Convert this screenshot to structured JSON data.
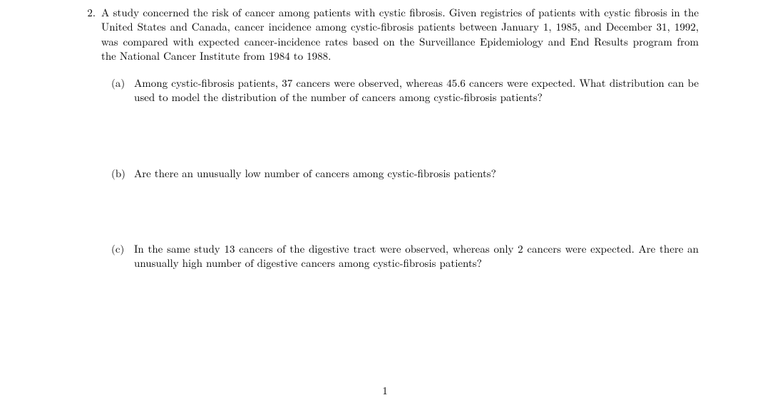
{
  "document": {
    "background_color": "#ffffff",
    "text_color": "#000000",
    "font_family": "Latin Modern Roman, Computer Modern, Georgia, serif",
    "base_fontsize": 15,
    "page_number": "1"
  },
  "problem": {
    "number": "2.",
    "intro": "A study concerned the risk of cancer among patients with cystic fibrosis. Given registries of patients with cystic fibrosis in the United States and Canada, cancer incidence among cystic-fibrosis patients between January 1, 1985, and December 31, 1992, was compared with expected cancer-incidence rates based on the Surveillance Epidemiology and End Results program from the National Cancer Institute from 1984 to 1988.",
    "parts": {
      "a": {
        "label": "(a)",
        "text": "Among cystic-fibrosis patients, 37 cancers were observed, whereas 45.6 cancers were expected. What distribution can be used to model the distribution of the number of cancers among cystic-fibrosis patients?"
      },
      "b": {
        "label": "(b)",
        "text": "Are there an unusually low number of cancers among cystic-fibrosis patients?"
      },
      "c": {
        "label": "(c)",
        "text": "In the same study 13 cancers of the digestive tract were observed, whereas only 2 cancers were expected. Are there an unusually high number of digestive cancers among cystic-fibrosis patients?"
      }
    }
  }
}
